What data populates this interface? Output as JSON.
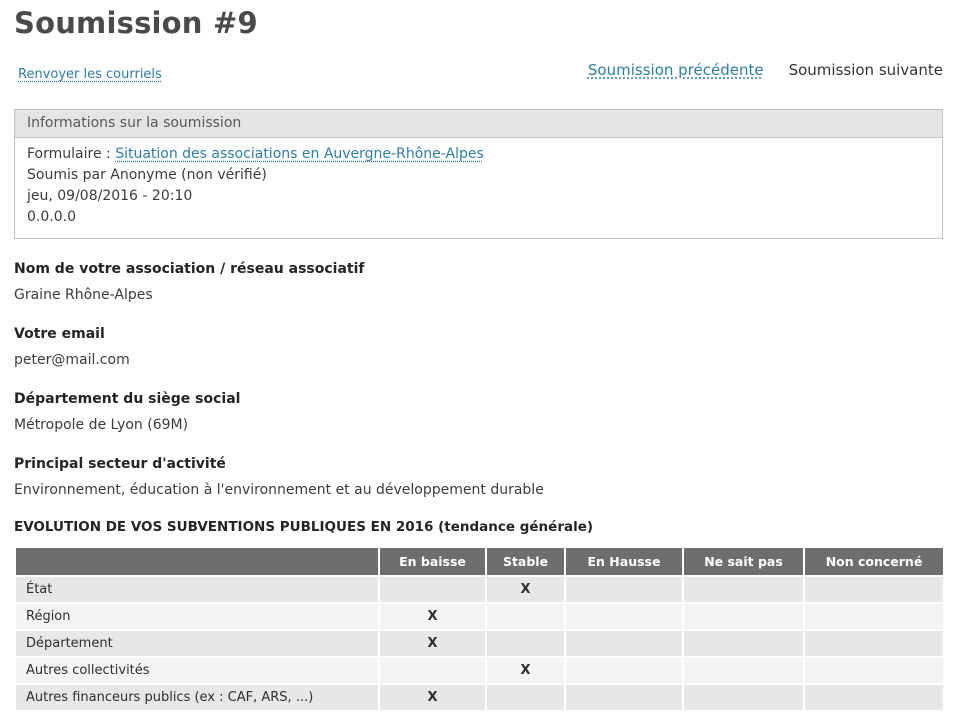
{
  "page": {
    "title": "Soumission #9"
  },
  "nav": {
    "resend_label": "Renvoyer les courriels",
    "prev_label": "Soumission précédente",
    "next_label": "Soumission suivante"
  },
  "info_panel": {
    "title": "Informations sur la soumission",
    "form_label": "Formulaire :",
    "form_link": "Situation des associations en Auvergne-Rhône-Alpes",
    "submitted_by": "Soumis par Anonyme (non vérifié)",
    "date": "jeu, 09/08/2016 - 20:10",
    "ip": "0.0.0.0"
  },
  "fields": [
    {
      "label": "Nom de votre association / réseau associatif",
      "value": "Graine Rhône-Alpes"
    },
    {
      "label": "Votre email",
      "value": "peter@mail.com"
    },
    {
      "label": "Département du siège social",
      "value": "Métropole de Lyon (69M)"
    },
    {
      "label": "Principal secteur d'activité",
      "value": "Environnement, éducation à l'environnement et au développement durable"
    }
  ],
  "subsidy_table": {
    "title": "EVOLUTION DE VOS SUBVENTIONS PUBLIQUES EN 2016 (tendance générale)",
    "columns": [
      "En baisse",
      "Stable",
      "En Hausse",
      "Ne sait pas",
      "Non concerné"
    ],
    "rows": [
      {
        "label": "État",
        "marks": [
          "",
          "X",
          "",
          "",
          ""
        ]
      },
      {
        "label": "Région",
        "marks": [
          "X",
          "",
          "",
          "",
          ""
        ]
      },
      {
        "label": "Département",
        "marks": [
          "X",
          "",
          "",
          "",
          ""
        ]
      },
      {
        "label": "Autres collectivités",
        "marks": [
          "",
          "X",
          "",
          "",
          ""
        ]
      },
      {
        "label": "Autres financeurs publics (ex : CAF, ARS, ...)",
        "marks": [
          "X",
          "",
          "",
          "",
          ""
        ]
      }
    ]
  },
  "colors": {
    "link": "#2e7da4",
    "title_text": "#4a4a4a",
    "table_header_bg": "#6e6e6e",
    "table_header_text": "#ffffff",
    "row_odd_bg": "#e7e7e7",
    "row_even_bg": "#f3f3f3",
    "panel_header_bg": "#e4e4e4",
    "panel_border": "#c3c3c3"
  }
}
